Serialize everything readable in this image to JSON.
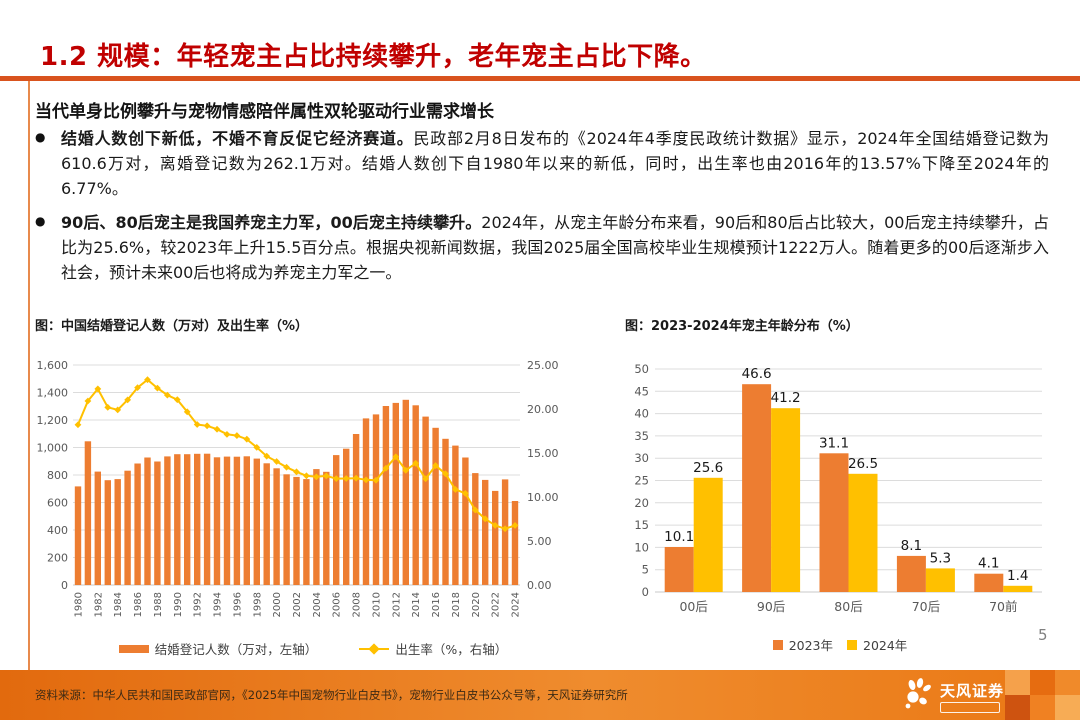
{
  "slide": {
    "title": "1.2 规模：年轻宠主占比持续攀升，老年宠主占比下降。",
    "subheading": "当代单身比例攀升与宠物情感陪伴属性双轮驱动行业需求增长",
    "bullets": [
      {
        "bold": "结婚人数创下新低，不婚不育反促它经济赛道。",
        "rest": "民政部2月8日发布的《2024年4季度民政统计数据》显示，2024年全国结婚登记数为610.6万对，离婚登记数为262.1万对。结婚人数创下自1980年以来的新低，同时，出生率也由2016年的13.57%下降至2024年的6.77%。"
      },
      {
        "bold": "90后、80后宠主是我国养宠主力军，00后宠主持续攀升。",
        "rest": "2024年，从宠主年龄分布来看，90后和80后占比较大，00后宠主持续攀升，占比为25.6%，较2023年上升15.5百分点。根据央视新闻数据，我国2025届全国高校毕业生规模预计1222万人。随着更多的00后逐渐步入社会，预计未来00后也将成为养宠主力军之一。"
      }
    ],
    "page_number": "5",
    "footer": {
      "source": "资料来源：中华人民共和国民政部官网，《2025年中国宠物行业白皮书》，宠物行业白皮书公众号等，天风证券研究所",
      "logo_text": "天风证券",
      "mosaic_colors": [
        "#F5A14B",
        "#E66C10",
        "#F08A2A",
        "#CE5310",
        "#F08122",
        "#F7AC55"
      ]
    }
  },
  "colors": {
    "title_red": "#C00000",
    "accent_orange": "#D9531E",
    "bar_orange": "#ED7D31",
    "gold": "#FFC000",
    "axis_gray": "#595959",
    "grid_gray": "#DCDCDC"
  },
  "chart_data": [
    {
      "type": "bar",
      "title": "图：中国结婚登记人数（万对）及出生率（%）",
      "categories": [
        1980,
        1981,
        1982,
        1983,
        1984,
        1985,
        1986,
        1987,
        1988,
        1989,
        1990,
        1991,
        1992,
        1993,
        1994,
        1995,
        1996,
        1997,
        1998,
        1999,
        2000,
        2001,
        2002,
        2003,
        2004,
        2005,
        2006,
        2007,
        2008,
        2009,
        2010,
        2011,
        2012,
        2013,
        2014,
        2015,
        2016,
        2017,
        2018,
        2019,
        2020,
        2021,
        2022,
        2023,
        2024
      ],
      "series": [
        {
          "name": "结婚登记人数（万对，左轴）",
          "type": "bar",
          "axis": "left",
          "color": "#ED7D31",
          "values": [
            717,
            1045,
            825,
            762,
            770,
            831,
            884,
            927,
            898,
            935,
            951,
            951,
            954,
            955,
            929,
            934,
            933,
            936,
            919,
            885,
            849,
            805,
            786,
            770,
            843,
            823,
            945,
            991,
            1098,
            1212,
            1241,
            1302,
            1324,
            1347,
            1307,
            1225,
            1143,
            1063,
            1014,
            927,
            814,
            764,
            684,
            768,
            611
          ]
        },
        {
          "name": "出生率（%，右轴）",
          "type": "line",
          "axis": "right",
          "color": "#FFC000",
          "values": [
            18.21,
            20.91,
            22.28,
            20.19,
            19.9,
            21.04,
            22.43,
            23.33,
            22.37,
            21.58,
            21.06,
            19.68,
            18.24,
            18.09,
            17.7,
            17.12,
            16.98,
            16.57,
            15.64,
            14.64,
            14.03,
            13.38,
            12.86,
            12.41,
            12.29,
            12.4,
            12.09,
            12.1,
            12.14,
            11.95,
            11.9,
            13.27,
            14.57,
            13.03,
            13.83,
            12.07,
            13.57,
            12.64,
            10.86,
            10.41,
            8.52,
            7.52,
            6.77,
            6.39,
            6.77
          ]
        }
      ],
      "left_axis": {
        "min": 0,
        "max": 1600,
        "step": 200
      },
      "right_axis": {
        "min": 0,
        "max": 25,
        "step": 5
      },
      "x_tick_every": 2,
      "grid": true,
      "legend_position": "bottom"
    },
    {
      "type": "bar",
      "title": "图：2023-2024年宠主年龄分布（%）",
      "categories": [
        "00后",
        "90后",
        "80后",
        "70后",
        "70前"
      ],
      "series": [
        {
          "name": "2023年",
          "color": "#ED7D31",
          "values": [
            10.1,
            46.6,
            31.1,
            8.1,
            4.1
          ]
        },
        {
          "name": "2024年",
          "color": "#FFC000",
          "values": [
            25.6,
            41.2,
            26.5,
            5.3,
            1.4
          ]
        }
      ],
      "ylim": [
        0,
        50
      ],
      "ystep": 5,
      "data_labels": true,
      "grid": true,
      "legend_position": "bottom"
    }
  ]
}
